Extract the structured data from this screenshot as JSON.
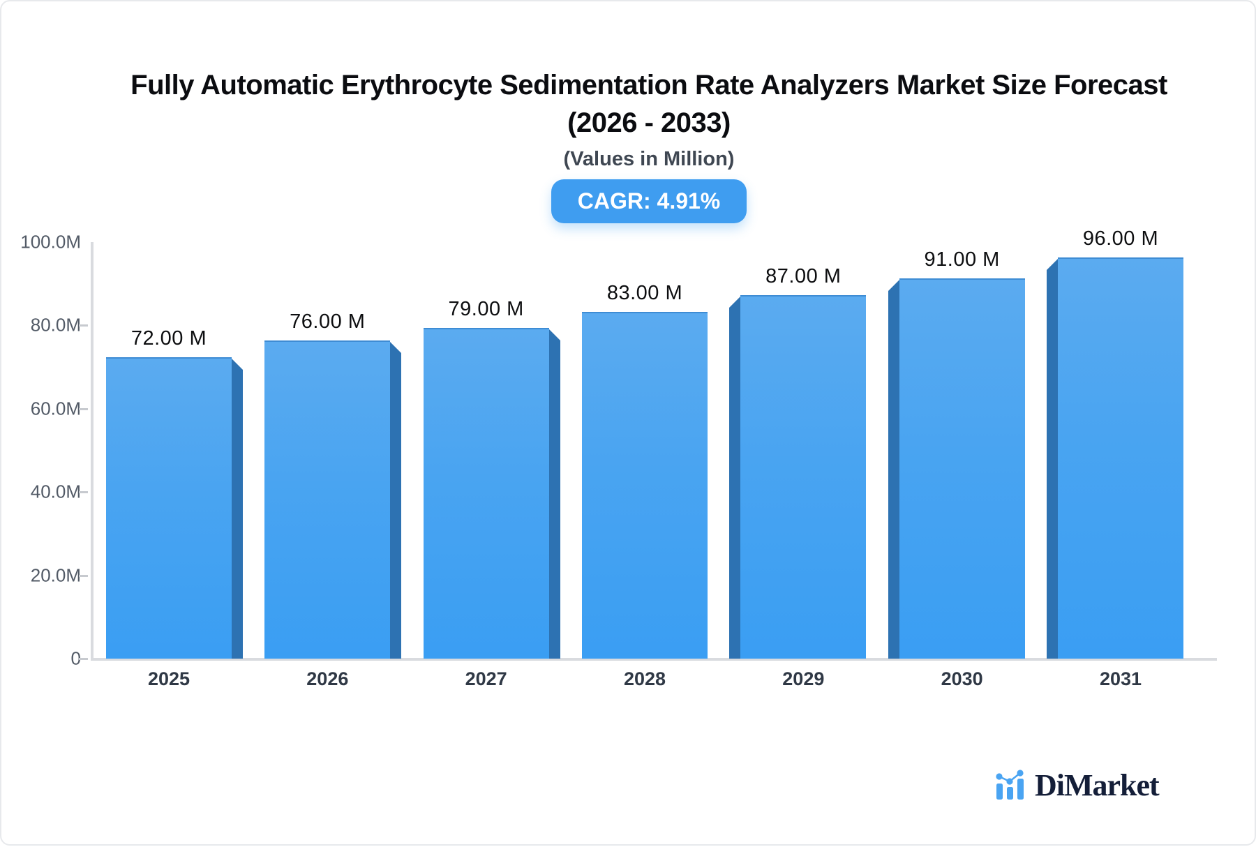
{
  "header": {
    "title_line1": "Fully Automatic Erythrocyte Sedimentation Rate Analyzers Market Size Forecast",
    "title_line2": "(2026 - 2033)",
    "subtitle": "(Values in Million)",
    "cagr_badge": "CAGR: 4.91%"
  },
  "chart_data": {
    "type": "bar",
    "title": "Fully Automatic Erythrocyte Sedimentation Rate Analyzers Market Size Forecast (2026 - 2033)",
    "subtitle": "(Values in Million)",
    "unit": "Million",
    "cagr_percent": 4.91,
    "categories": [
      "2025",
      "2026",
      "2027",
      "2028",
      "2029",
      "2030",
      "2031"
    ],
    "values": [
      72,
      76,
      79,
      83,
      87,
      91,
      96
    ],
    "value_labels": [
      "72.00 M",
      "76.00 M",
      "79.00 M",
      "83.00 M",
      "87.00 M",
      "91.00 M",
      "96.00 M"
    ],
    "ylabel": "",
    "xlabel": "",
    "ylim": [
      0,
      100
    ],
    "y_ticks": [
      {
        "value": 100,
        "label": "100.0M"
      },
      {
        "value": 80,
        "label": "80.0M"
      },
      {
        "value": 60,
        "label": "60.0M"
      },
      {
        "value": 40,
        "label": "40.0M"
      },
      {
        "value": 20,
        "label": "20.0M"
      },
      {
        "value": 0,
        "label": "0"
      }
    ],
    "grid": false,
    "legend": "none",
    "style": "3d-bevel-bars"
  },
  "colors": {
    "bar_top": "#5babf0",
    "bar_bottom": "#3a9ef3",
    "bar_side": "#2d72b2",
    "badge_background": "#3f9df0",
    "badge_text": "#ffffff",
    "axis_line": "#d9dbdf",
    "logo_blue": "#4aa4f2",
    "logo_navy": "#141e38"
  },
  "branding": {
    "logo_text": "DiMarket"
  }
}
